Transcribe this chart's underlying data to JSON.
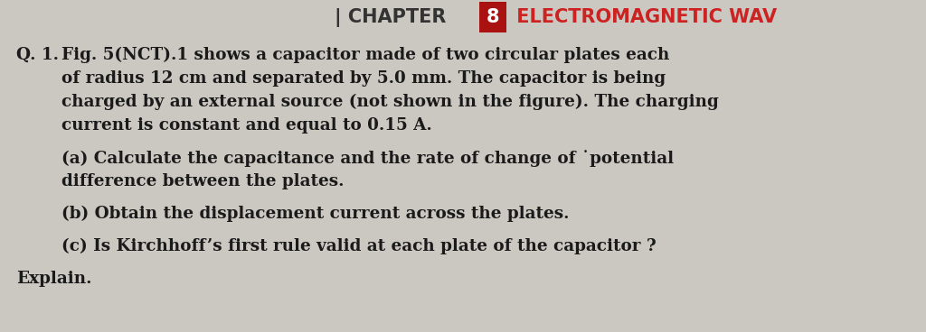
{
  "bg_color": "#cbc8c2",
  "header_red_box_color": "#aa1111",
  "header_chapter_color": "#333333",
  "header_em_color": "#cc2222",
  "body_text_color": "#1a1a1a",
  "question_label": "Q. 1.",
  "line1": "Fig. 5(NCT).1 shows a capacitor made of two circular plates each",
  "line2": "of radius 12 cm and separated by 5.0 mm. The capacitor is being",
  "line3": "charged by an external source (not shown in the figure). The charging",
  "line4": "current is constant and equal to 0.15 A.",
  "line_a1": "(a) Calculate the capacitance and the rate of change of ˙potential",
  "line_a2": "difference between the plates.",
  "line_b": "(b) Obtain the displacement current across the plates.",
  "line_c": "(c) Is Kirchhoff’s first rule valid at each plate of the capacitor ?",
  "line_d": "Explain.",
  "header_pipe": "| CHAPTER",
  "header_num": "8",
  "header_em": " ELECTROMAGNETIC WAV",
  "fig_width": 10.24,
  "fig_height": 3.68,
  "dpi": 100
}
